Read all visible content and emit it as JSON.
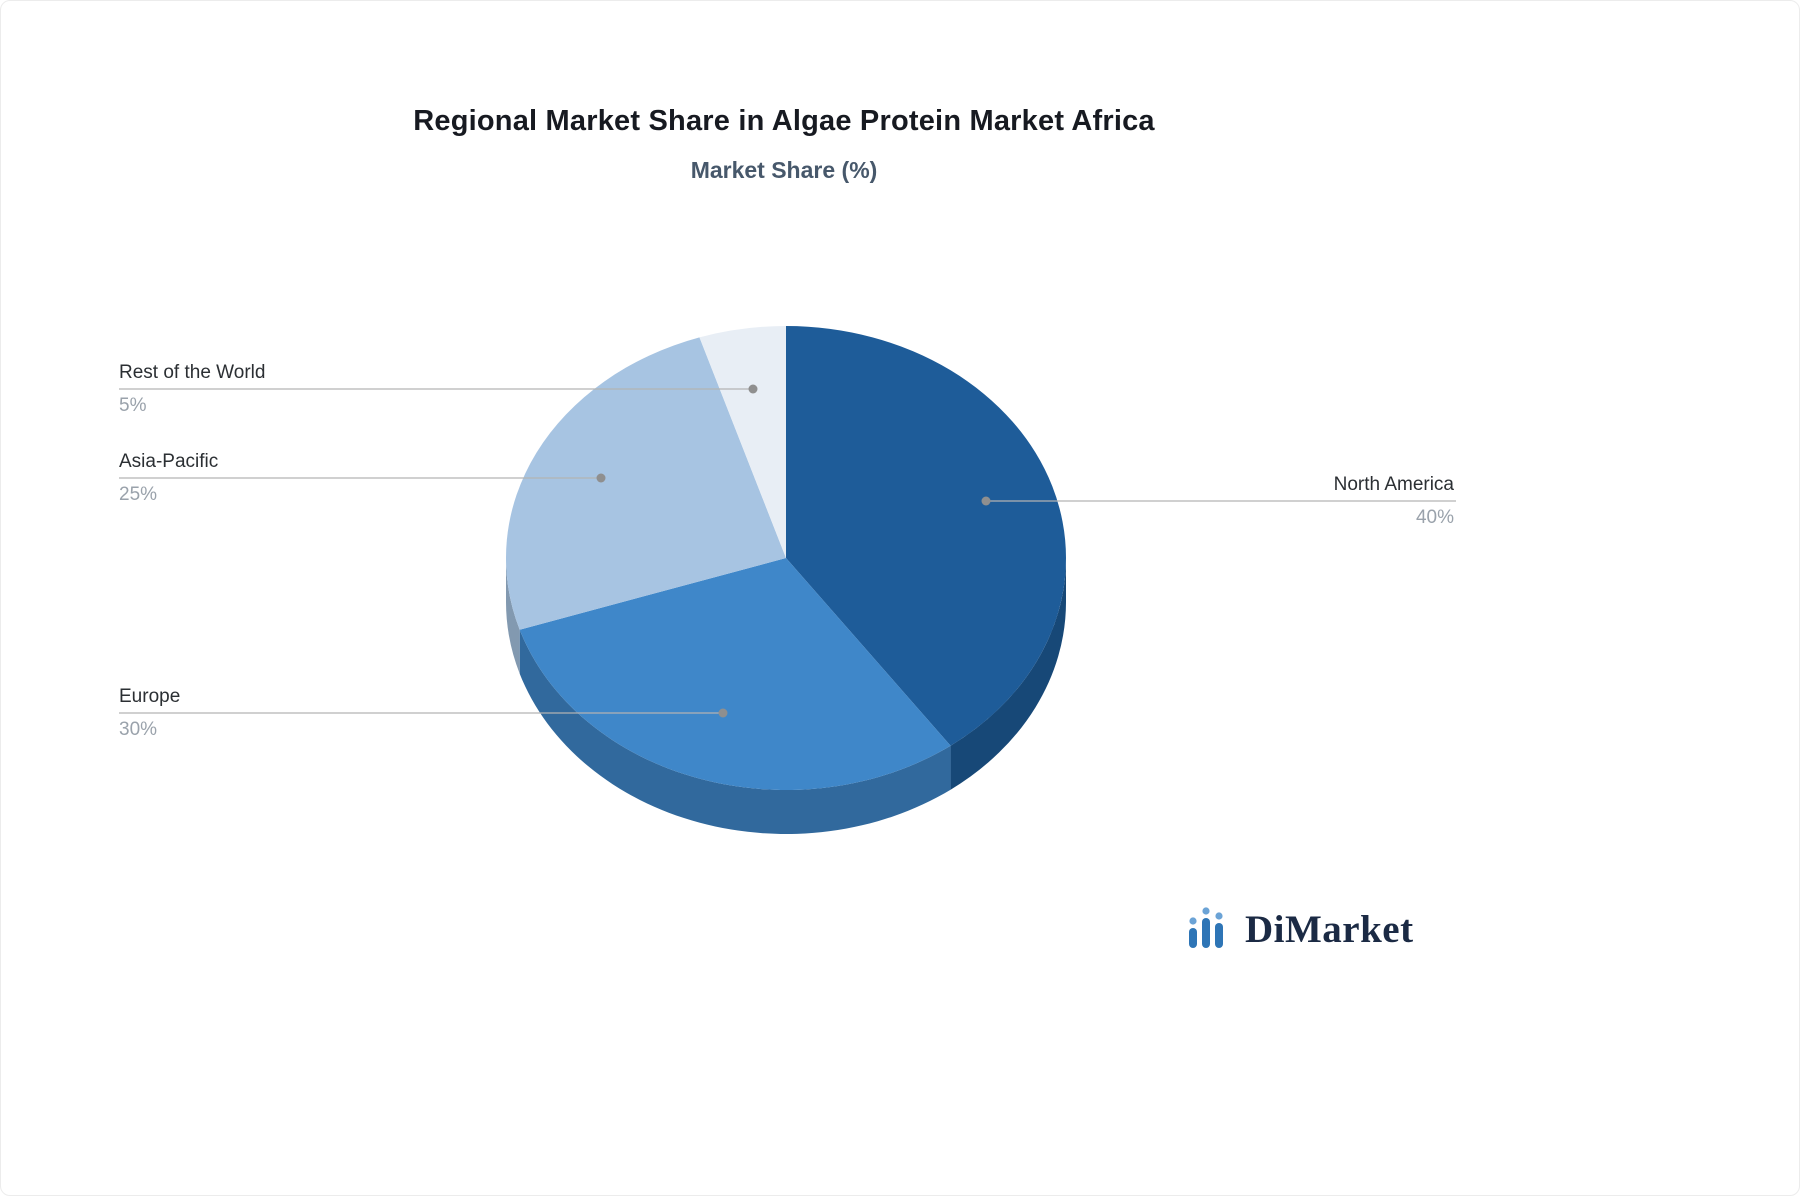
{
  "header": {
    "title": "Regional Market Share in Algae Protein Market Africa",
    "subtitle": "Market Share (%)"
  },
  "chart_data": {
    "type": "pie",
    "title": "Regional Market Share in Algae Protein Market Africa",
    "subtitle": "Market Share (%)",
    "unit": "%",
    "style": "3d",
    "start_angle": "top",
    "direction": "clockwise",
    "legend_position": "callout-labels",
    "categories": [
      "North America",
      "Europe",
      "Asia-Pacific",
      "Rest of the World"
    ],
    "values": [
      40,
      30,
      25,
      5
    ],
    "points": [
      {
        "label": "North America",
        "value": 40,
        "value_label": "40%",
        "color": "#1e5c99"
      },
      {
        "label": "Europe",
        "value": 30,
        "value_label": "30%",
        "color": "#3f87c9"
      },
      {
        "label": "Asia-Pacific",
        "value": 25,
        "value_label": "25%",
        "color": "#a7c4e2"
      },
      {
        "label": "Rest of the World",
        "value": 5,
        "value_label": "5%",
        "color": "#e8eef5"
      }
    ]
  },
  "branding": {
    "logo_text": "DiMarket",
    "logo_icon": "bar-chart-icon",
    "logo_color": "#1b2a44",
    "icon_color": "#2e75b6",
    "icon_dot_color": "#6ba3d6"
  },
  "colors": {
    "background": "#ffffff",
    "title": "#171a21",
    "subtitle": "#47586b",
    "label_name": "#2b2f33",
    "label_value": "#9aa2ab",
    "leader_line": "#b3b3b3",
    "leader_dot": "#8f8f8f"
  }
}
